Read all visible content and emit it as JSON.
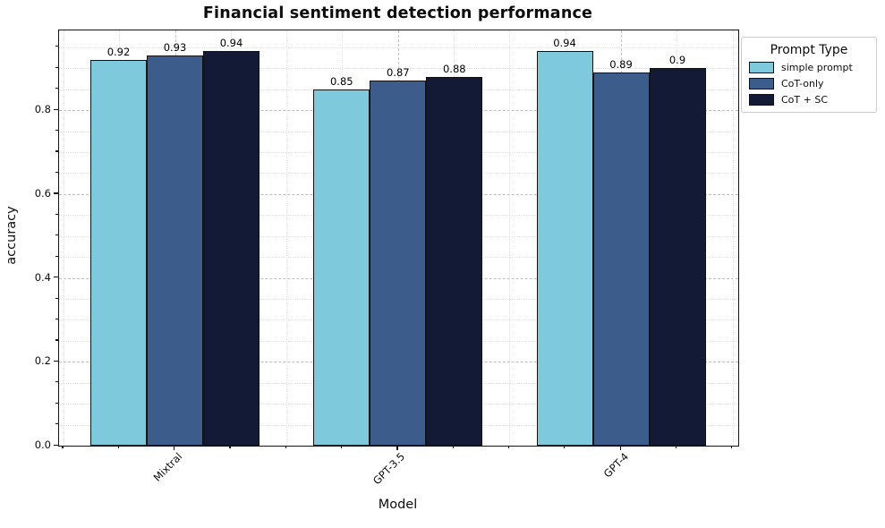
{
  "chart_data": {
    "type": "bar",
    "title": "Financial sentiment detection performance",
    "xlabel": "Model",
    "ylabel": "accuracy",
    "categories": [
      "Mixtral",
      "GPT-3.5",
      "GPT-4"
    ],
    "series": [
      {
        "name": "simple prompt",
        "color": "#7EC9DB",
        "values": [
          0.92,
          0.85,
          0.94
        ]
      },
      {
        "name": "CoT-only",
        "color": "#3C5D8C",
        "values": [
          0.93,
          0.87,
          0.89
        ]
      },
      {
        "name": "CoT + SC",
        "color": "#131A36",
        "values": [
          0.94,
          0.88,
          0.9
        ]
      }
    ],
    "bar_value_labels": [
      [
        "0.92",
        "0.85",
        "0.94"
      ],
      [
        "0.93",
        "0.87",
        "0.89"
      ],
      [
        "0.94",
        "0.88",
        "0.9"
      ]
    ],
    "legend": {
      "title": "Prompt Type",
      "entries": [
        "simple prompt",
        "CoT-only",
        "CoT + SC"
      ],
      "position": "upper-right-outside"
    },
    "ylim": [
      0.0,
      0.99
    ],
    "yticks": [
      "0.0",
      "0.2",
      "0.4",
      "0.6",
      "0.8"
    ],
    "ytick_values": [
      0.0,
      0.2,
      0.4,
      0.6,
      0.8
    ],
    "grid": "major dashed + minor dotted, both axes",
    "bar_edge_color": "#111111",
    "colors": {
      "spine": "#141414",
      "grid_major": "#bcbcbc",
      "grid_minor": "#e0e0e0",
      "text": "#0d0d0d"
    }
  }
}
